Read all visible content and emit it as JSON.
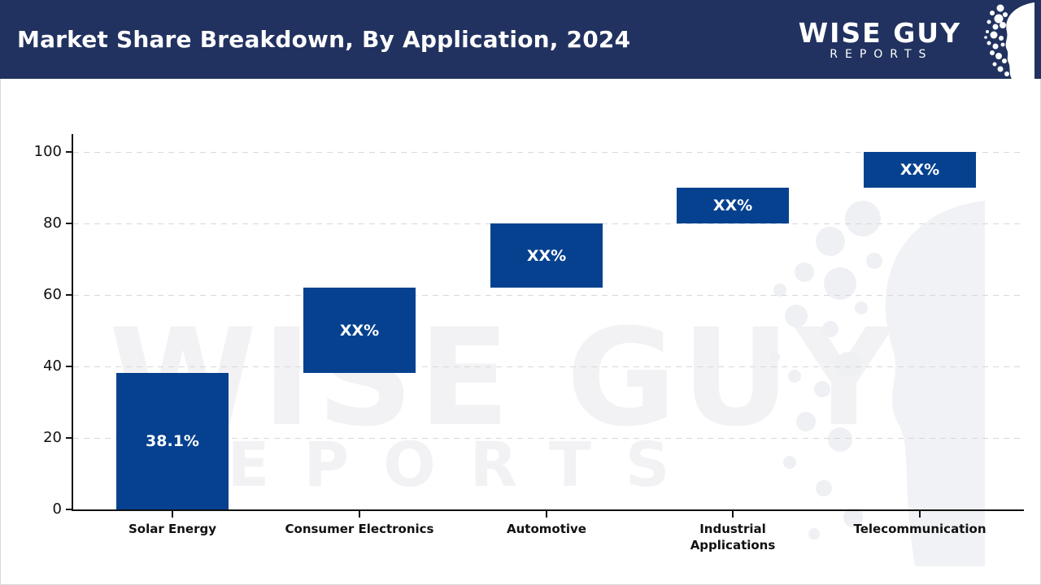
{
  "header": {
    "title": "Market Share Breakdown, By Application, 2024",
    "bg_color": "#213260",
    "logo": {
      "line1": "WISE GUY",
      "line2": "REPORTS"
    }
  },
  "watermark": {
    "line1": "WISE GUY",
    "line2": "REPORTS"
  },
  "chart_data": {
    "type": "bar",
    "subtype": "waterfall",
    "title": "Market Share Breakdown, By Application, 2024",
    "categories": [
      "Solar Energy",
      "Consumer Electronics",
      "Automotive",
      "Industrial Applications",
      "Telecommunication"
    ],
    "series": [
      {
        "name": "Market share (%)",
        "segments": [
          {
            "category": "Solar Energy",
            "start": 0,
            "end": 38.1,
            "label": "38.1%"
          },
          {
            "category": "Consumer Electronics",
            "start": 38.1,
            "end": 62,
            "label": "XX%"
          },
          {
            "category": "Automotive",
            "start": 62,
            "end": 80,
            "label": "XX%"
          },
          {
            "category": "Industrial Applications",
            "start": 80,
            "end": 90,
            "label": "XX%"
          },
          {
            "category": "Telecommunication",
            "start": 90,
            "end": 100,
            "label": "XX%"
          }
        ]
      }
    ],
    "xlabel": "",
    "ylabel": "",
    "ylim": [
      0,
      100
    ],
    "yticks": [
      0,
      20,
      40,
      60,
      80,
      100
    ],
    "grid": "horizontal-dashed",
    "legend": "none",
    "bar_color": "#05418f",
    "bar_label_color": "#ffffff",
    "gridline_color": "#d8d8d8",
    "axis_color": "#111111"
  }
}
